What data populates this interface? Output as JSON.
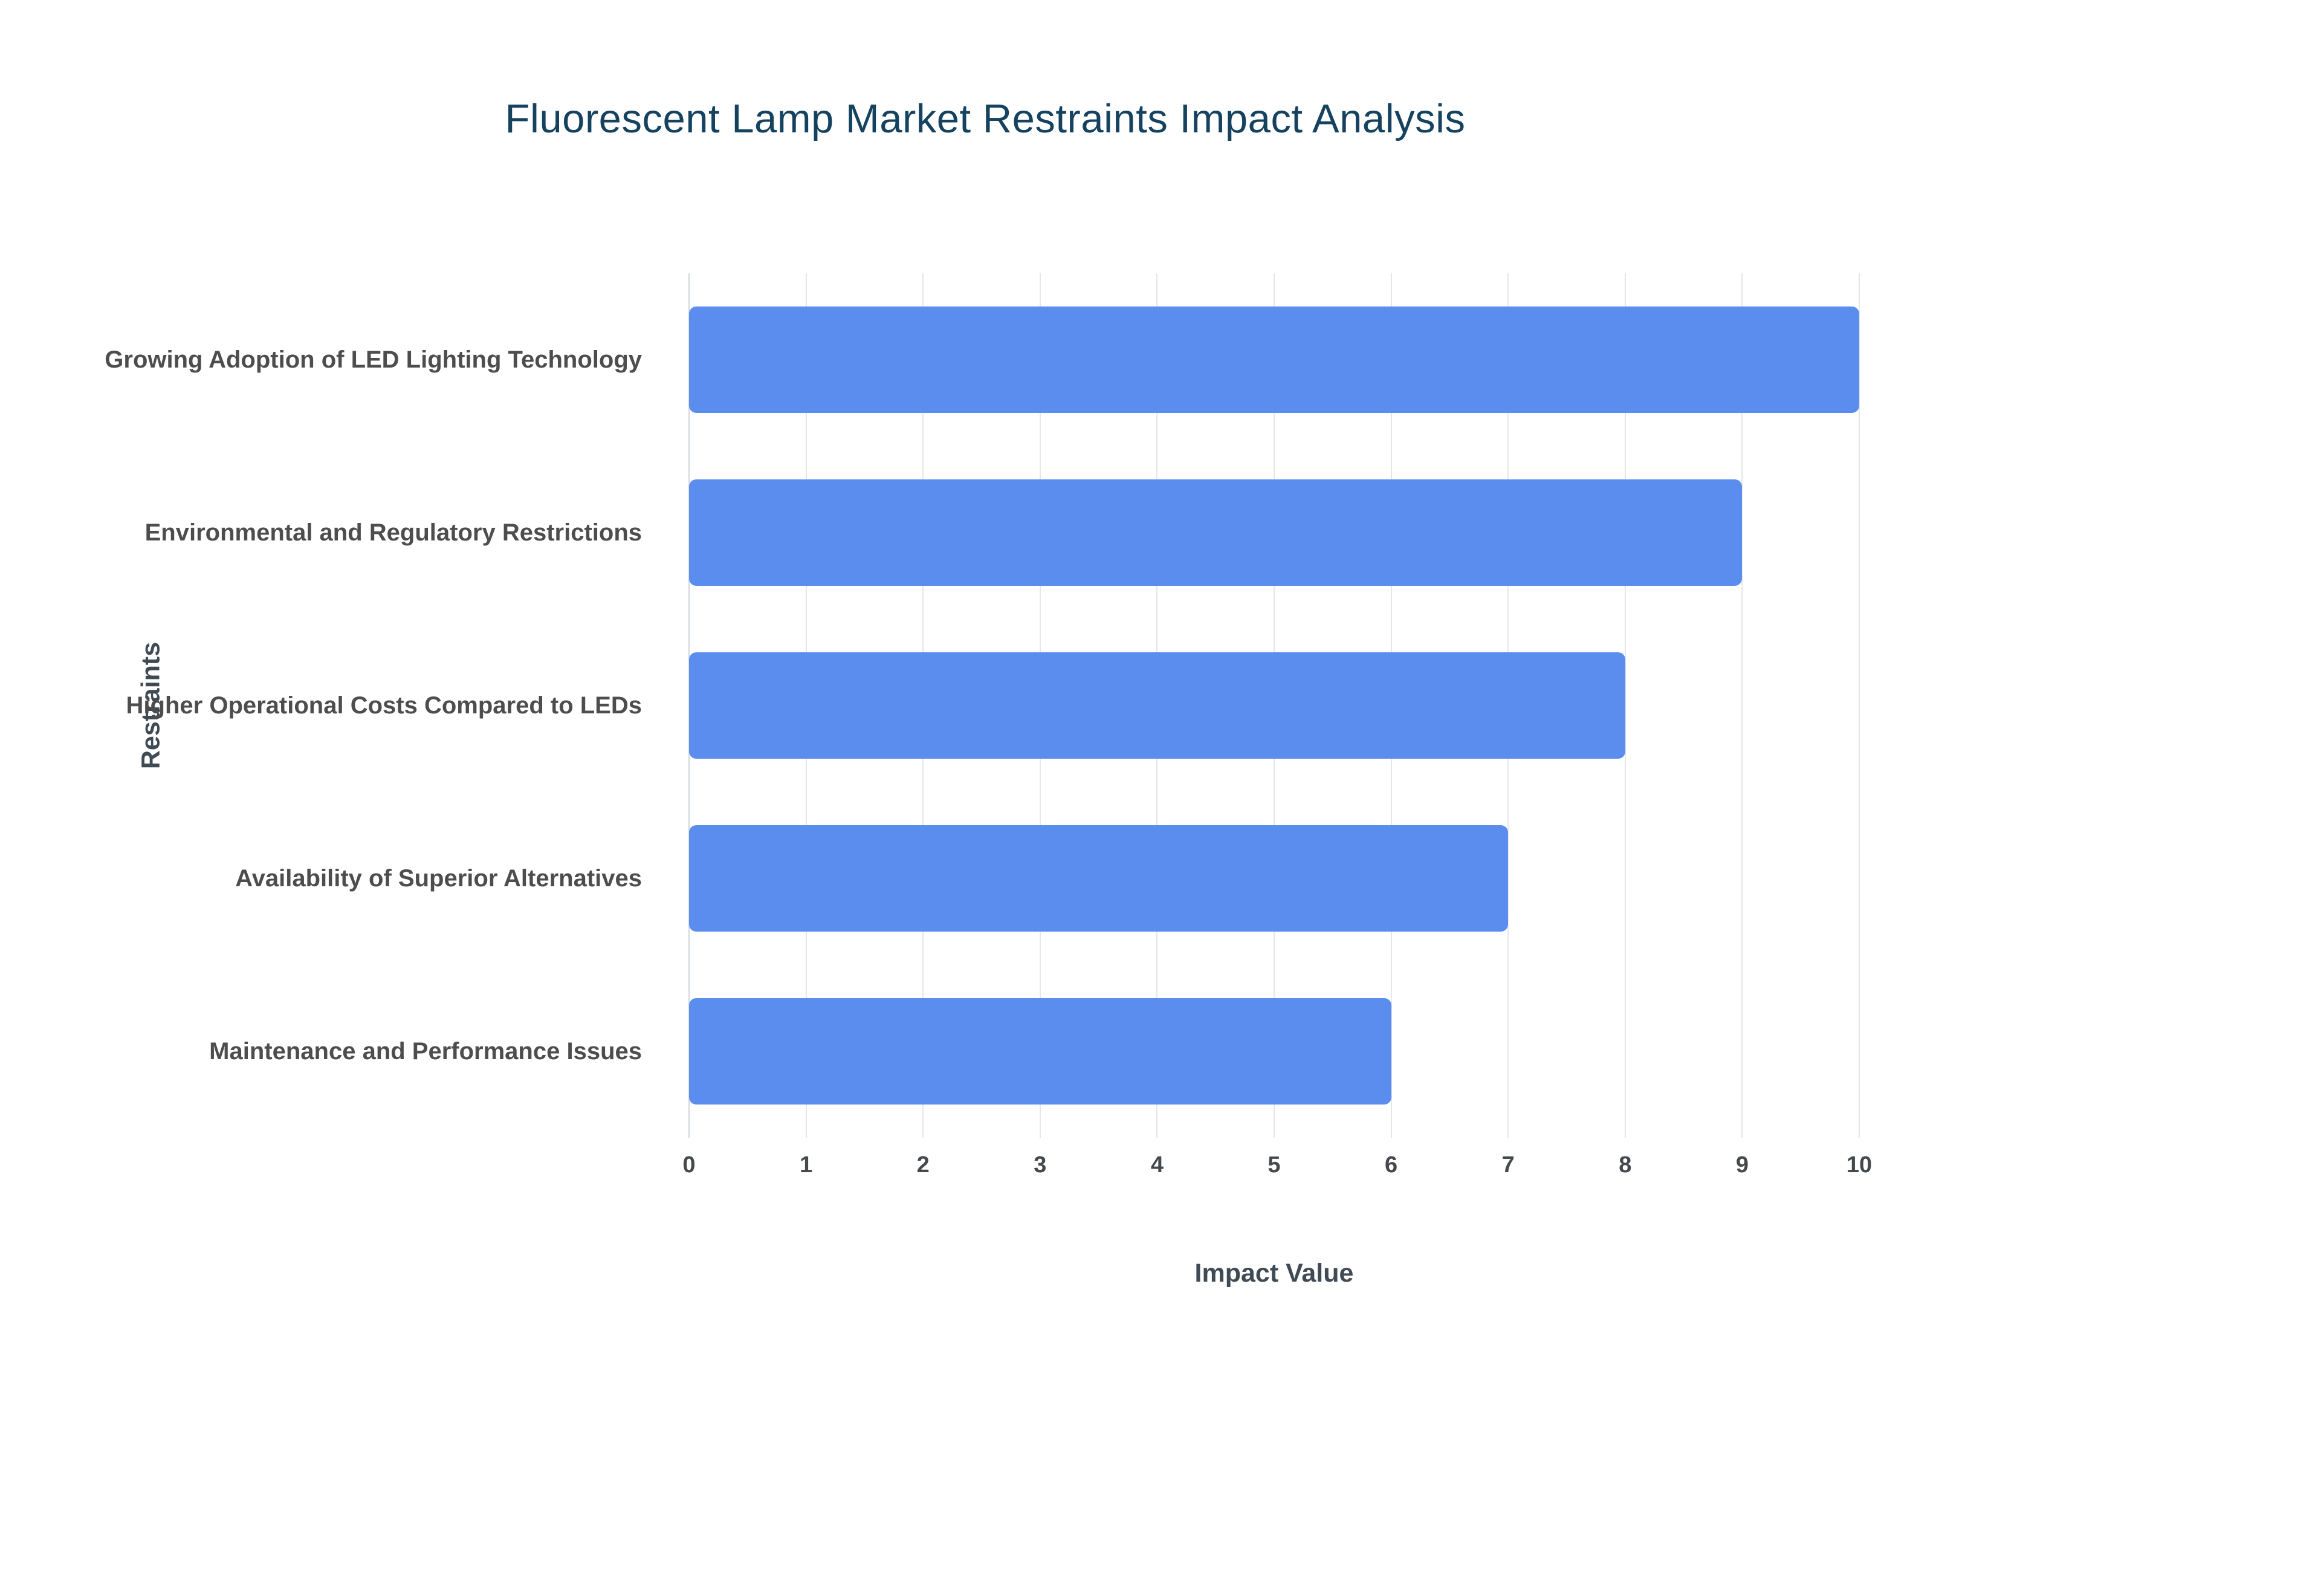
{
  "title": "Fluorescent Lamp Market Restraints Impact Analysis",
  "chart_data": {
    "type": "bar",
    "orientation": "horizontal",
    "title": "Fluorescent Lamp Market Restraints Impact Analysis",
    "xlabel": "Impact Value",
    "ylabel": "Restraints",
    "categories": [
      "Growing Adoption of LED Lighting Technology",
      "Environmental and Regulatory Restrictions",
      "Higher Operational Costs Compared to LEDs",
      "Availability of Superior Alternatives",
      "Maintenance and Performance Issues"
    ],
    "values": [
      10,
      9,
      8,
      7,
      6
    ],
    "xlim": [
      0,
      10
    ],
    "xticks": [
      0,
      1,
      2,
      3,
      4,
      5,
      6,
      7,
      8,
      9,
      10
    ],
    "grid": true,
    "legend": "none",
    "bar_color": "#5b8def",
    "background": "#ffffff"
  }
}
